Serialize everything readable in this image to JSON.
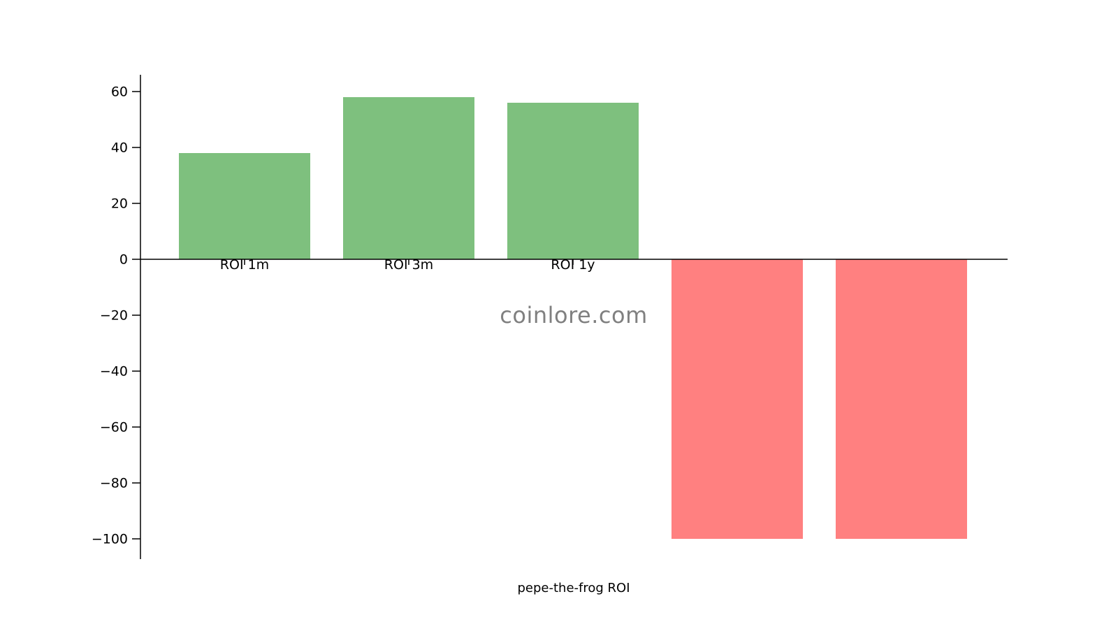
{
  "page": {
    "background_color": "#ffffff"
  },
  "chart_data": {
    "type": "bar",
    "title": "pepe-the-frog ROI",
    "watermark": "coinlore.com",
    "categories": [
      "ROI 1m",
      "ROI 3m",
      "ROI 1y",
      "",
      ""
    ],
    "values": [
      38,
      58,
      56,
      -100,
      -100
    ],
    "positive_color": "#7ec07e",
    "negative_color": "#ff8080",
    "axis_color": "#000000",
    "tick_label_color": "#000000",
    "title_color": "#000000",
    "watermark_color": "#808080",
    "yticks": [
      {
        "value": 60,
        "label": "60"
      },
      {
        "value": 40,
        "label": "40"
      },
      {
        "value": 20,
        "label": "20"
      },
      {
        "value": 0,
        "label": "0"
      },
      {
        "value": -20,
        "label": "−20"
      },
      {
        "value": -40,
        "label": "−40"
      },
      {
        "value": -60,
        "label": "−60"
      },
      {
        "value": -80,
        "label": "−80"
      },
      {
        "value": -100,
        "label": "−100"
      }
    ],
    "ylim": [
      -107,
      66
    ],
    "xlabel": "",
    "ylabel": "",
    "grid": false,
    "legend": null
  }
}
